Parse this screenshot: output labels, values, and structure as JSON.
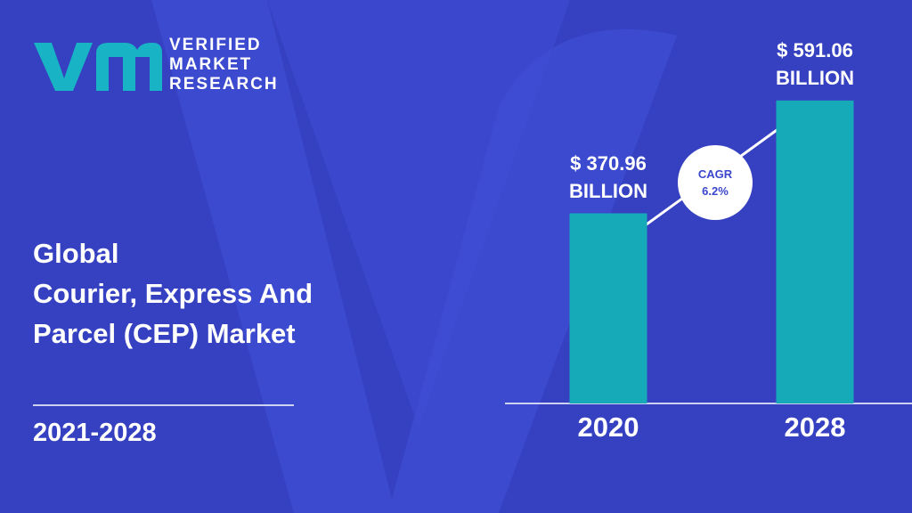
{
  "brand": [
    "VERIFIED",
    "MARKET",
    "RESEARCH"
  ],
  "chart_data": {
    "type": "bar",
    "title": "Global\nCourier, Express And\nParcel (CEP) Market",
    "subtitle": "2021-2028",
    "categories": [
      "2020",
      "2028"
    ],
    "values": [
      370.96,
      591.06
    ],
    "value_labels": [
      "$ 370.96\nBILLION",
      "$ 591.06\nBILLION"
    ],
    "color": "#16aab8",
    "annotation": "CAGR\n6.2%"
  }
}
